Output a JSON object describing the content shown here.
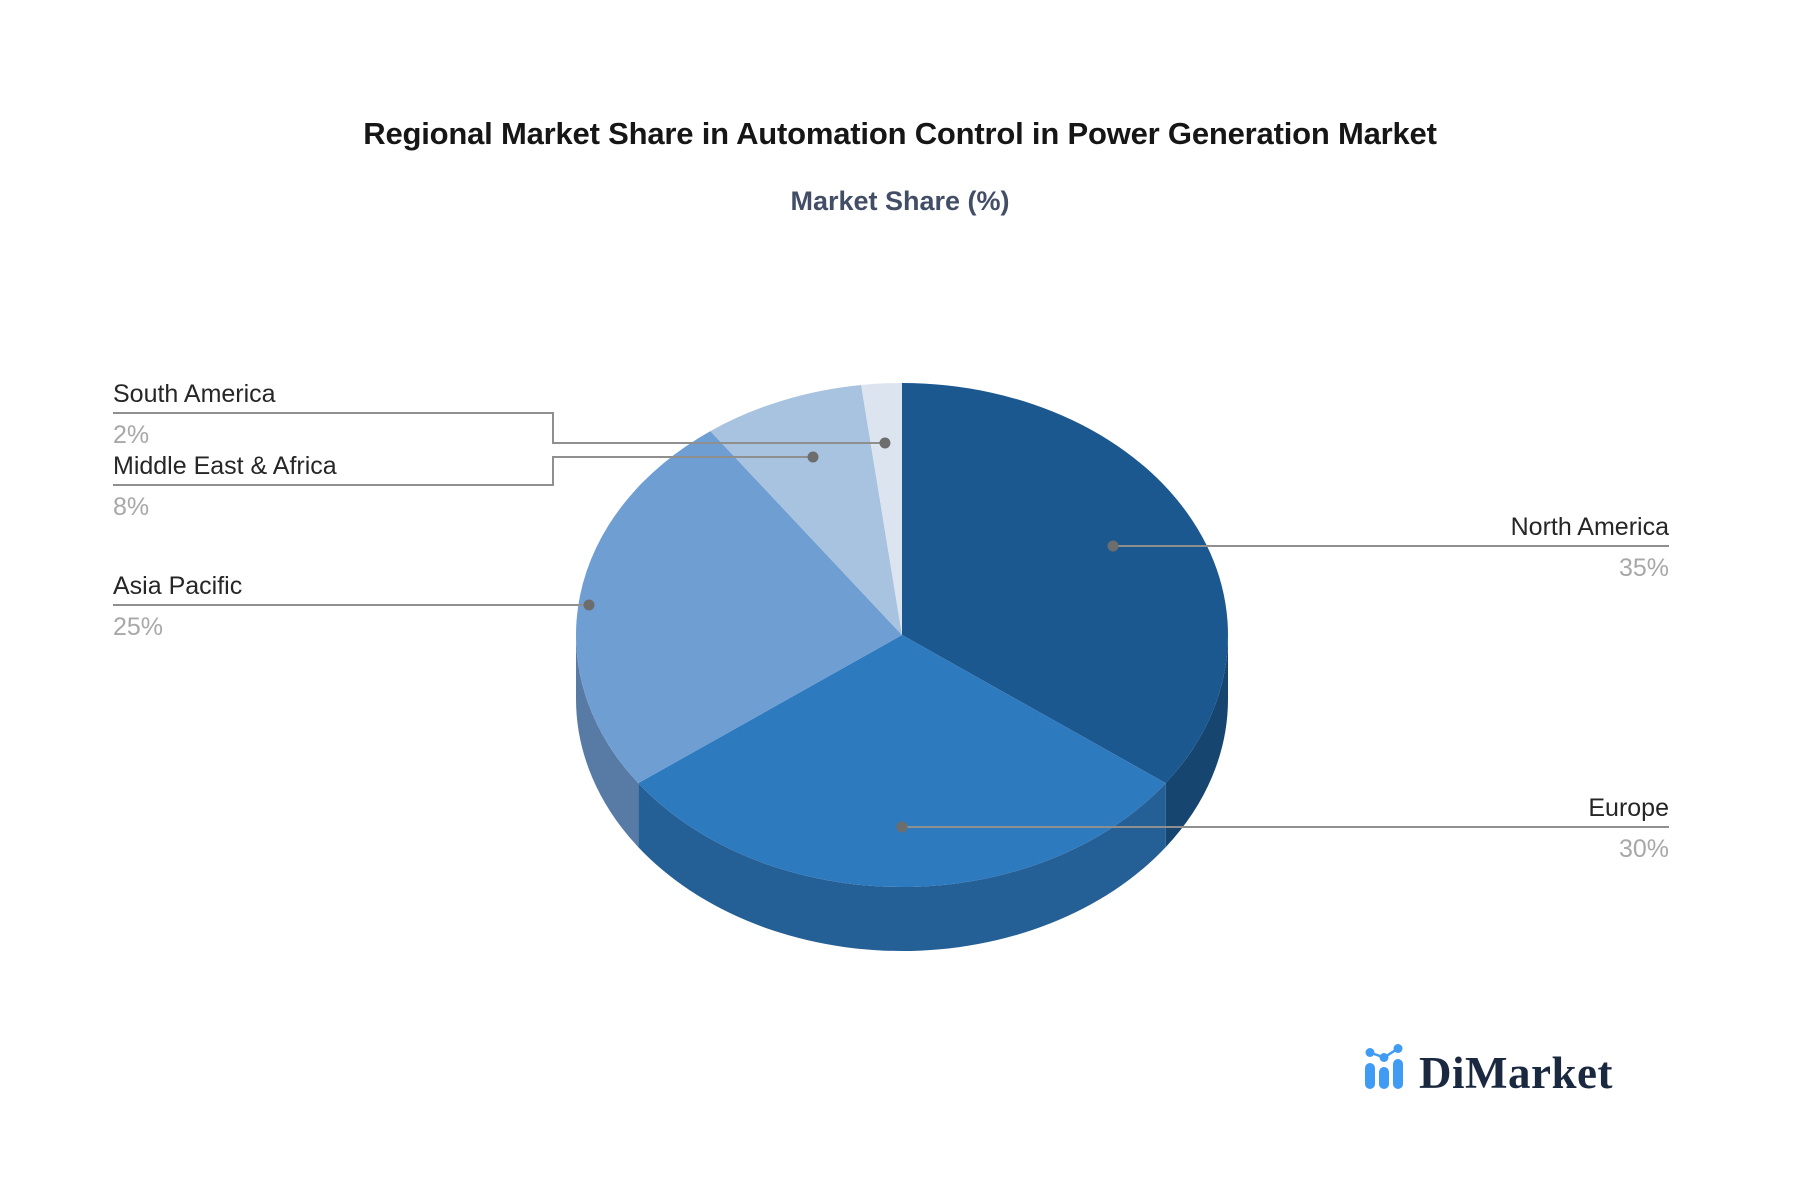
{
  "header": {
    "title": "Regional Market Share in Automation Control in Power Generation Market",
    "subtitle": "Market Share (%)"
  },
  "brand": {
    "name": "DiMarket",
    "icon": "bar-chart-logo-icon",
    "icon_color": "#3f9bf4",
    "text_color": "#1b2940"
  },
  "colors": {
    "background": "#ffffff",
    "leader_line": "#8f8f8f",
    "leader_dot": "#6d6d6d",
    "label_text": "#262626",
    "value_text": "#a8a8a8",
    "subtitle_text": "#424e66"
  },
  "chart_data": {
    "type": "pie",
    "style": "3d",
    "title": "Regional Market Share in Automation Control in Power Generation Market",
    "subtitle": "Market Share (%)",
    "unit": "%",
    "direction": "clockwise",
    "start_angle_deg": 0,
    "legend_position": "callout-labels",
    "categories": [
      "North America",
      "Europe",
      "Asia Pacific",
      "Middle East & Africa",
      "South America"
    ],
    "values": [
      35,
      30,
      25,
      8,
      2
    ],
    "slices": [
      {
        "label": "North America",
        "value": 35,
        "display": "35%",
        "color": "#1c5890"
      },
      {
        "label": "Europe",
        "value": 30,
        "display": "30%",
        "color": "#2e7abf"
      },
      {
        "label": "Asia Pacific",
        "value": 25,
        "display": "25%",
        "color": "#6f9ed3"
      },
      {
        "label": "Middle East & Africa",
        "value": 8,
        "display": "8%",
        "color": "#a8c3e0"
      },
      {
        "label": "South America",
        "value": 2,
        "display": "2%",
        "color": "#dce4f0"
      }
    ]
  }
}
